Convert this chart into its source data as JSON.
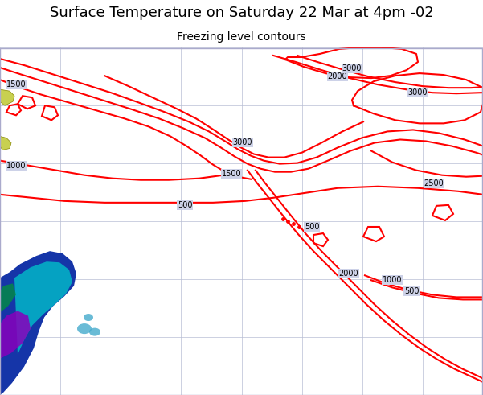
{
  "title": "Surface Temperature on Saturday 22 Mar at 4pm -02",
  "subtitle": "Freezing level contours",
  "title_fontsize": 13,
  "subtitle_fontsize": 10,
  "map_bg": "#cdd2e8",
  "contour_color": "#ff0000",
  "contour_linewidth": 1.5,
  "label_fontsize": 7,
  "figsize": [
    6.01,
    4.91
  ],
  "dpi": 100
}
